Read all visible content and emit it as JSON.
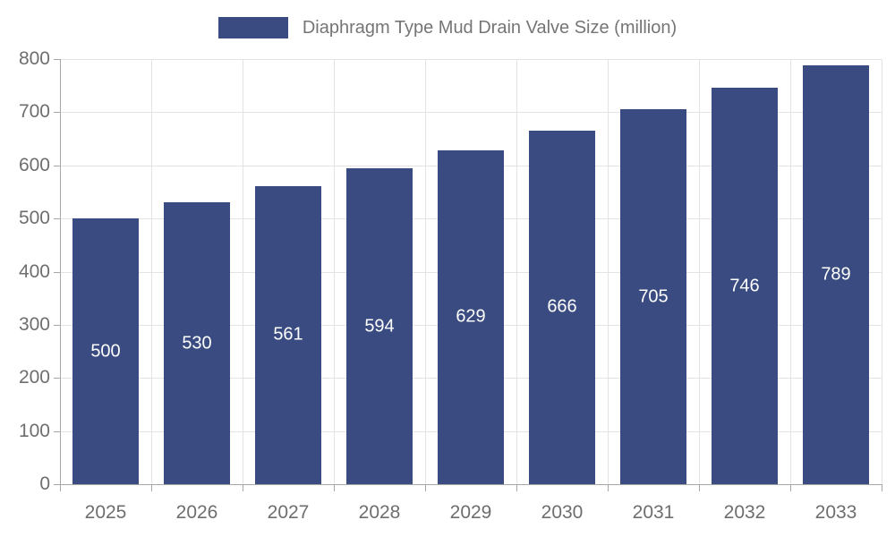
{
  "chart_data": {
    "type": "bar",
    "title": "Diaphragm Type Mud Drain Valve Size (million)",
    "categories": [
      "2025",
      "2026",
      "2027",
      "2028",
      "2029",
      "2030",
      "2031",
      "2032",
      "2033"
    ],
    "values": [
      500,
      530,
      561,
      594,
      629,
      666,
      705,
      746,
      789
    ],
    "xlabel": "",
    "ylabel": "",
    "ylim": [
      0,
      800
    ],
    "ytick_step": 100,
    "ytick_labels": [
      "0",
      "100",
      "200",
      "300",
      "400",
      "500",
      "600",
      "700",
      "800"
    ],
    "grid": "horizontal and vertical light gridlines",
    "legend_position": "top-center",
    "value_labels": "white, centered inside bars",
    "colors": {
      "bar": "#394b80",
      "gridline": "#e3e3e3",
      "axis_line": "#a6a6a6",
      "tick_text": "#6e6e6e",
      "legend_text": "#757575",
      "value_label_text": "#ffffff",
      "background": "#ffffff"
    }
  }
}
